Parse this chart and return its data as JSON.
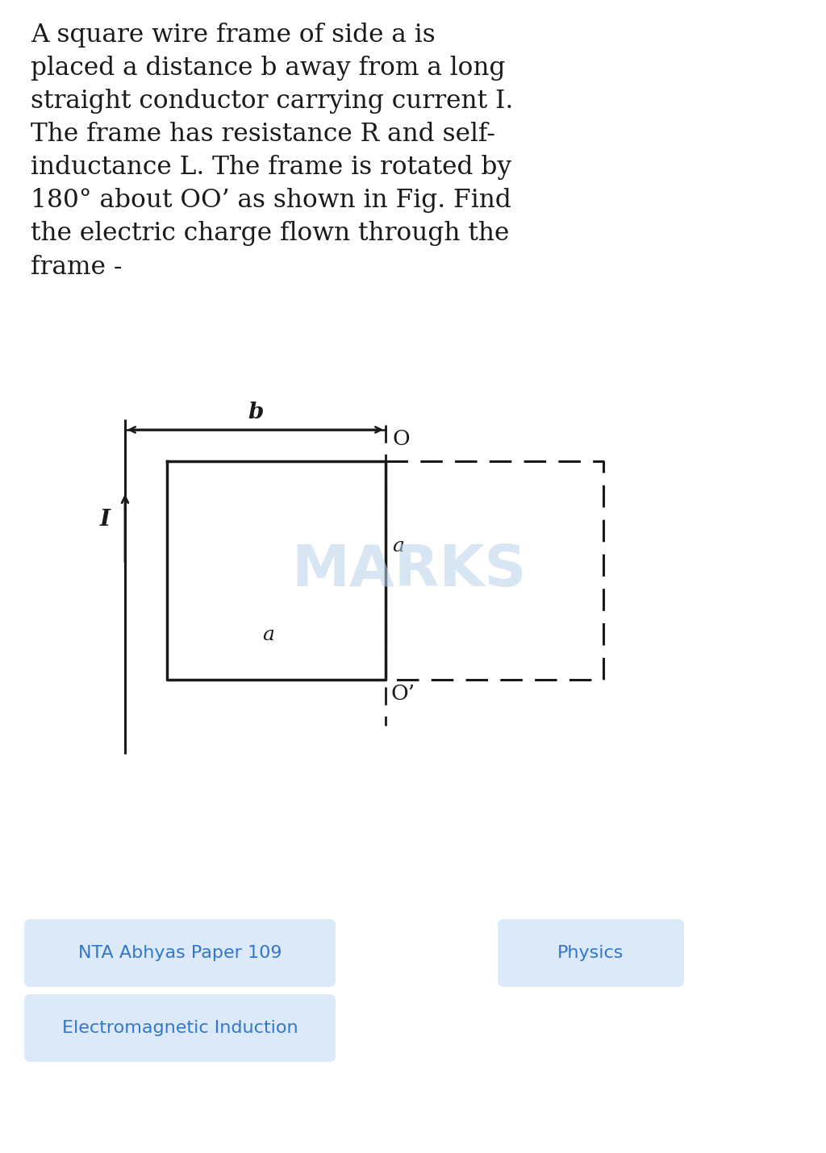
{
  "background_color": "#ffffff",
  "text_color": "#1a1a1a",
  "question_text": "A square wire frame of side a is\nplaced a distance b away from a long\nstraight conductor carrying current I.\nThe frame has resistance R and self-\ninductance L. The frame is rotated by\n180° about OO’ as shown in Fig. Find\nthe electric charge flown through the\nframe -",
  "question_fontsize": 22.5,
  "tag1_text": "NTA Abhyas Paper 109",
  "tag2_text": "Physics",
  "tag3_text": "Electromagnetic Induction",
  "tag_bg_color": "#dbe9f8",
  "tag_text_color": "#3377cc",
  "tag_fontsize": 16,
  "fig_label_I": "I",
  "fig_label_b": "b",
  "fig_label_O": "O",
  "fig_label_O_prime": "O’",
  "fig_label_a1": "a",
  "fig_label_a2": "a",
  "solid_rect_color": "#1a1a1a",
  "dashed_rect_color": "#1a1a1a",
  "conductor_color": "#1a1a1a",
  "arrow_color": "#1a1a1a",
  "oo_line_color": "#1a1a1a",
  "watermark_text": "MARKS",
  "watermark_color": "#b8d0e8",
  "watermark_alpha": 0.55
}
